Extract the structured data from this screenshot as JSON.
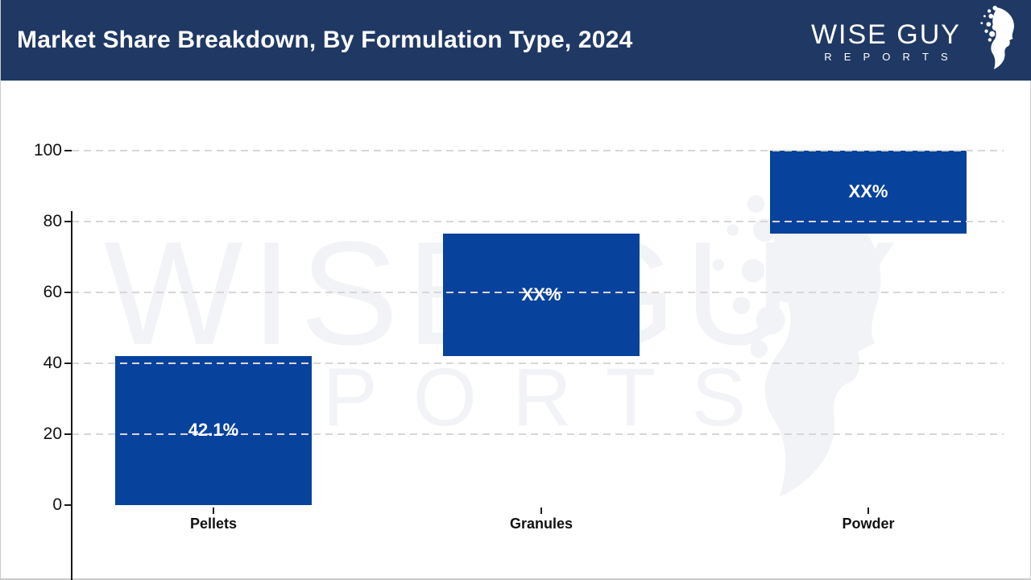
{
  "header": {
    "title": "Market Share Breakdown, By Formulation Type, 2024",
    "logo": {
      "line1": "WISE GUY",
      "line2": "REPORTS"
    }
  },
  "watermark": {
    "line1": "WISE GUY",
    "line2": "REPORTS"
  },
  "colors": {
    "header_bg": "#1f3864",
    "bar": "#07429c",
    "bar_label_text": "#ffffff",
    "gridline": "#d7d7d7",
    "axis": "#1a1a1a",
    "watermark": "#f2f3f6"
  },
  "chart_data": {
    "type": "bar",
    "subtype": "waterfall-stacked-percentage",
    "title": "Market Share Breakdown, By Formulation Type, 2024",
    "categories": [
      "Pellets",
      "Granules",
      "Powder"
    ],
    "segments": [
      {
        "category": "Pellets",
        "start": 0,
        "end": 42.1,
        "label": "42.1%"
      },
      {
        "category": "Granules",
        "start": 42.1,
        "end": 76.6,
        "label": "XX%"
      },
      {
        "category": "Powder",
        "start": 76.6,
        "end": 100,
        "label": "XX%"
      }
    ],
    "ylim": [
      0,
      100
    ],
    "yticks": [
      0,
      20,
      40,
      60,
      80,
      100
    ],
    "xlabel": "",
    "ylabel": "",
    "grid": "horizontal-dashed",
    "legend": "none"
  }
}
